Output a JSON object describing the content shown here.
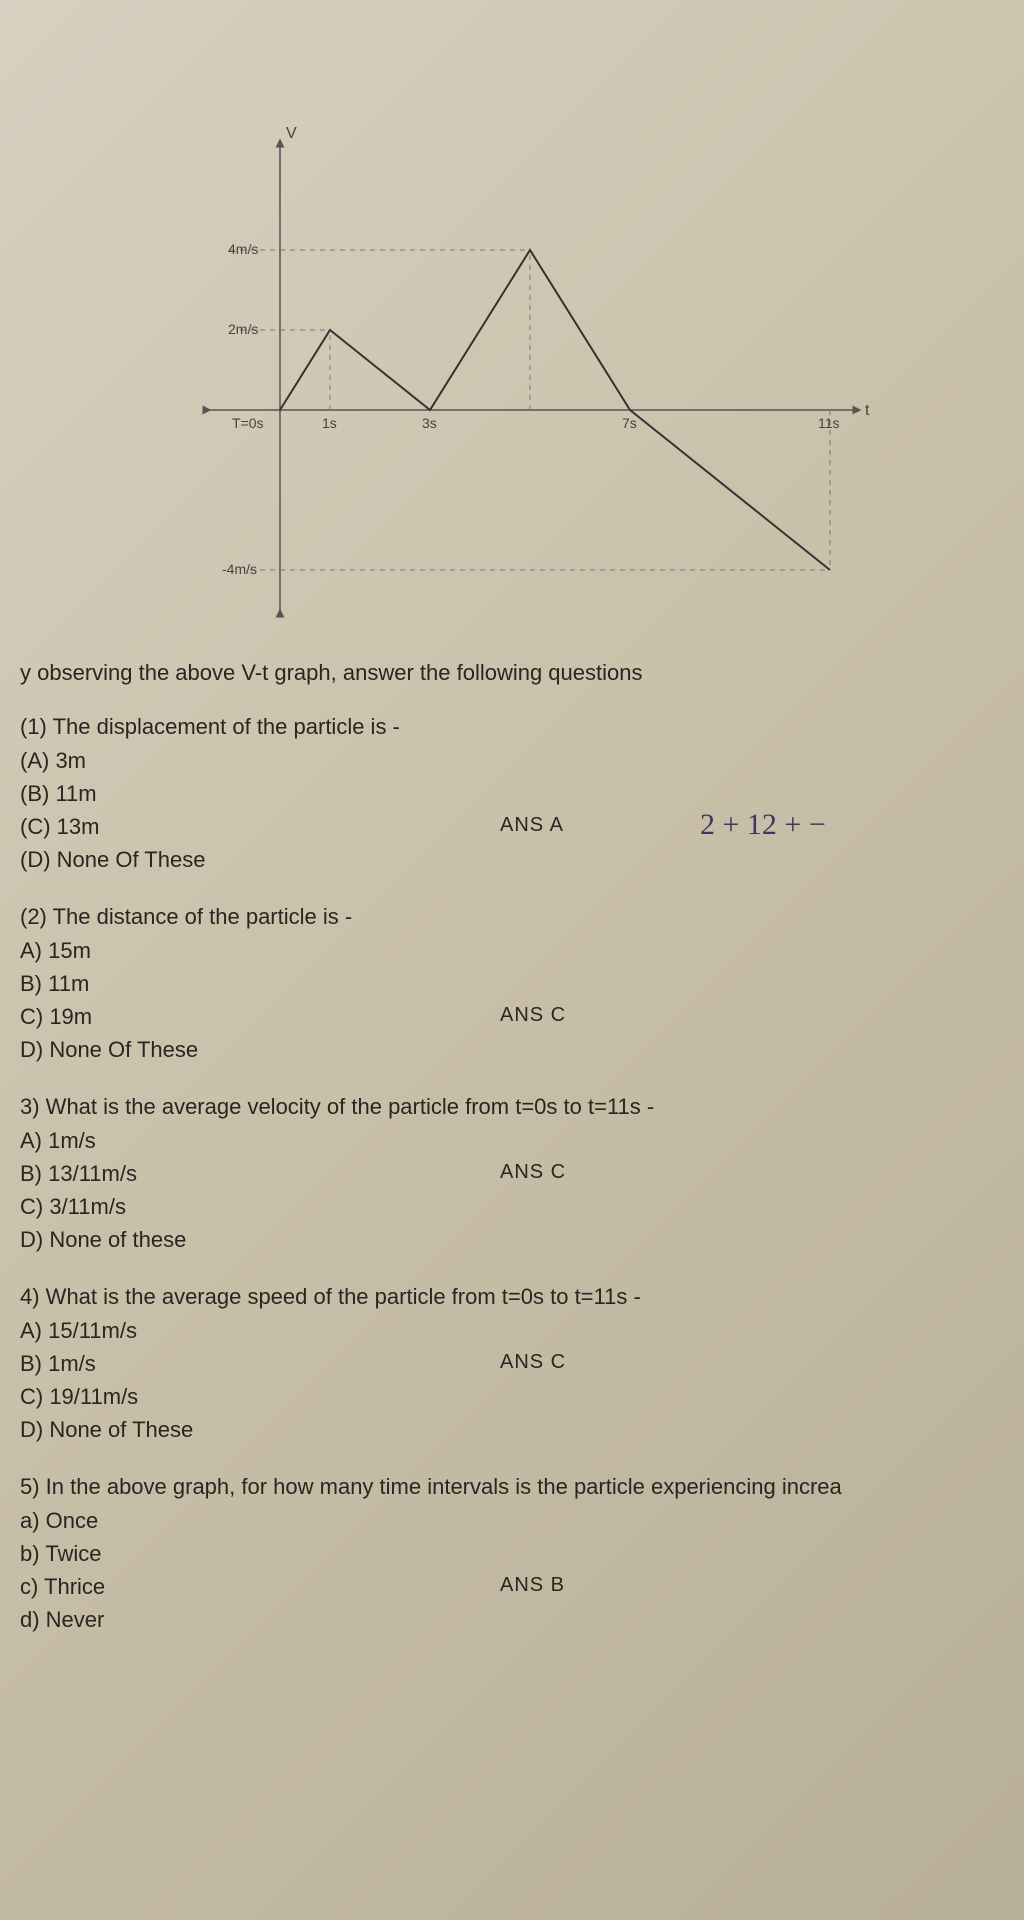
{
  "graph": {
    "type": "line",
    "x_axis": {
      "label": "t",
      "unit": "s",
      "origin_label": "T=0s",
      "ticks": [
        "1s",
        "3s",
        "7s",
        "11s"
      ]
    },
    "y_axis": {
      "label": "V",
      "unit": "m/s",
      "ticks_pos": [
        "2m/s",
        "4m/s"
      ],
      "ticks_neg": [
        "-4m/s"
      ]
    },
    "points": [
      {
        "t": 0,
        "v": 0
      },
      {
        "t": 1,
        "v": 2
      },
      {
        "t": 3,
        "v": 0
      },
      {
        "t": 5,
        "v": 4
      },
      {
        "t": 7,
        "v": 0
      },
      {
        "t": 11,
        "v": -4
      }
    ],
    "colors": {
      "axis": "#555",
      "line": "#333",
      "dash": "#777",
      "bg": "#cfc6b0"
    },
    "line_width": 1.5,
    "arrow_heads": true
  },
  "intro": "y observing the above V-t graph, answer the following questions",
  "handwrite": "2 + 12 + −",
  "questions": [
    {
      "num": "(1)",
      "text": "The displacement of the particle is -",
      "options": [
        {
          "key": "(A)",
          "val": "3m"
        },
        {
          "key": "(B)",
          "val": "11m"
        },
        {
          "key": "(C)",
          "val": "13m"
        },
        {
          "key": "(D)",
          "val": "None Of These"
        }
      ],
      "answer": "ANS A",
      "ans_row": 2
    },
    {
      "num": "(2)",
      "text": "The distance of the particle is -",
      "options": [
        {
          "key": "A)",
          "val": "15m"
        },
        {
          "key": "B)",
          "val": "11m"
        },
        {
          "key": "C)",
          "val": "19m"
        },
        {
          "key": "D)",
          "val": "None Of These"
        }
      ],
      "answer": "ANS C",
      "ans_row": 2
    },
    {
      "num": "3)",
      "text": "What is the average velocity of the particle from t=0s to t=11s -",
      "options": [
        {
          "key": "A)",
          "val": "1m/s"
        },
        {
          "key": "B)",
          "val": "13/11m/s"
        },
        {
          "key": "C)",
          "val": "3/11m/s"
        },
        {
          "key": "D)",
          "val": "None of these"
        }
      ],
      "answer": "ANS C",
      "ans_row": 1
    },
    {
      "num": "4)",
      "text": "What is the average speed of the particle from t=0s to t=11s -",
      "options": [
        {
          "key": "A)",
          "val": "15/11m/s"
        },
        {
          "key": "B)",
          "val": "1m/s"
        },
        {
          "key": "C)",
          "val": "19/11m/s"
        },
        {
          "key": "D)",
          "val": "None of These"
        }
      ],
      "answer": "ANS C",
      "ans_row": 1
    },
    {
      "num": "5)",
      "text": "In the above graph, for how many time intervals is the particle experiencing increa",
      "options": [
        {
          "key": "a)",
          "val": "Once"
        },
        {
          "key": "b)",
          "val": "Twice"
        },
        {
          "key": "c)",
          "val": "Thrice"
        },
        {
          "key": "d)",
          "val": "Never"
        }
      ],
      "answer": "ANS B",
      "ans_row": 2
    }
  ]
}
